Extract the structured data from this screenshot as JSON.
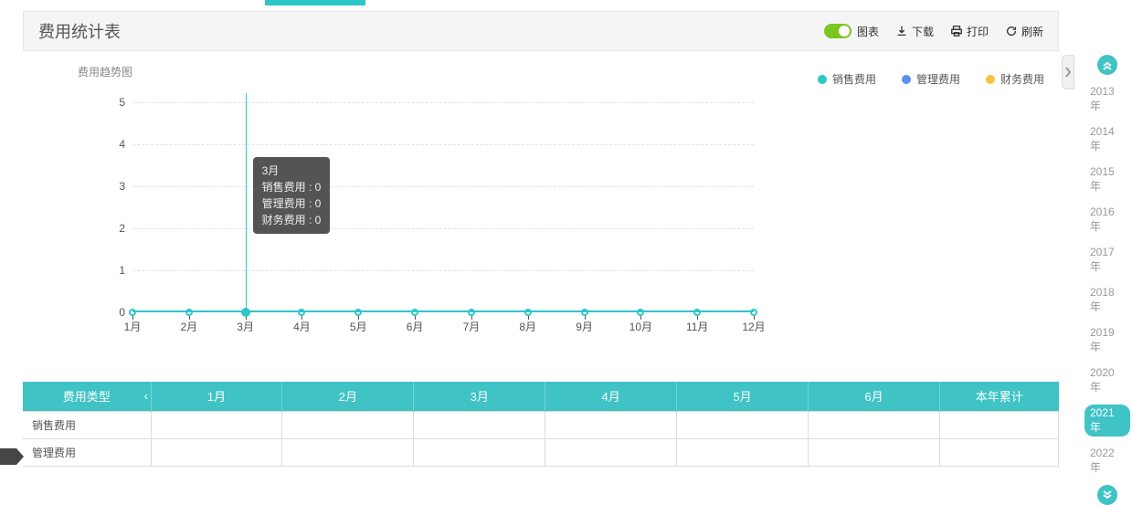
{
  "colors": {
    "accent": "#2ec7c9",
    "header_bg": "#f5f5f5",
    "header_border": "#e6e6e6",
    "toggle_on": "#7cc623",
    "table_header_bg": "#3fc3c5",
    "table_header_border": "#6fd4d6",
    "grid_dash": "#e3e3e3",
    "axis": "#555555",
    "tooltip_bg": "rgba(60,60,60,0.88)"
  },
  "header": {
    "title": "费用统计表",
    "toggle_label": "图表",
    "toggle_on": true,
    "actions": {
      "download": "下载",
      "print": "打印",
      "refresh": "刷新"
    }
  },
  "chart": {
    "type": "line",
    "title": "费用趋势图",
    "legend": [
      {
        "label": "销售费用",
        "color": "#2ec7c9"
      },
      {
        "label": "管理费用",
        "color": "#5a8ff3"
      },
      {
        "label": "财务费用",
        "color": "#f6c343"
      }
    ],
    "x_categories": [
      "1月",
      "2月",
      "3月",
      "4月",
      "5月",
      "6月",
      "7月",
      "8月",
      "9月",
      "10月",
      "11月",
      "12月"
    ],
    "y": {
      "min": 0,
      "max": 5,
      "step": 1
    },
    "series": {
      "销售费用": [
        0,
        0,
        0,
        0,
        0,
        0,
        0,
        0,
        0,
        0,
        0,
        0
      ],
      "管理费用": [
        0,
        0,
        0,
        0,
        0,
        0,
        0,
        0,
        0,
        0,
        0,
        0
      ],
      "财务费用": [
        0,
        0,
        0,
        0,
        0,
        0,
        0,
        0,
        0,
        0,
        0,
        0
      ]
    },
    "line_color": "#2ec7c9",
    "marker_style": "hollow-circle",
    "marker_border": "#2ec7c9",
    "marker_fill": "#ffffff",
    "grid_dashed": true,
    "hover": {
      "index": 2,
      "title": "3月",
      "rows": [
        {
          "label": "销售费用",
          "value": 0
        },
        {
          "label": "管理费用",
          "value": 0
        },
        {
          "label": "财务费用",
          "value": 0
        }
      ]
    }
  },
  "table": {
    "first_col_header": "费用类型",
    "month_headers": [
      "1月",
      "2月",
      "3月",
      "4月",
      "5月",
      "6月"
    ],
    "total_header": "本年累计",
    "rows": [
      {
        "label": "销售费用",
        "cells": [
          "",
          "",
          "",
          "",
          "",
          ""
        ],
        "total": ""
      },
      {
        "label": "管理费用",
        "cells": [
          "",
          "",
          "",
          "",
          "",
          ""
        ],
        "total": ""
      }
    ]
  },
  "year_rail": {
    "years": [
      "2013年",
      "2014年",
      "2015年",
      "2016年",
      "2017年",
      "2018年",
      "2019年",
      "2020年",
      "2021年",
      "2022年"
    ],
    "active": "2021年"
  }
}
